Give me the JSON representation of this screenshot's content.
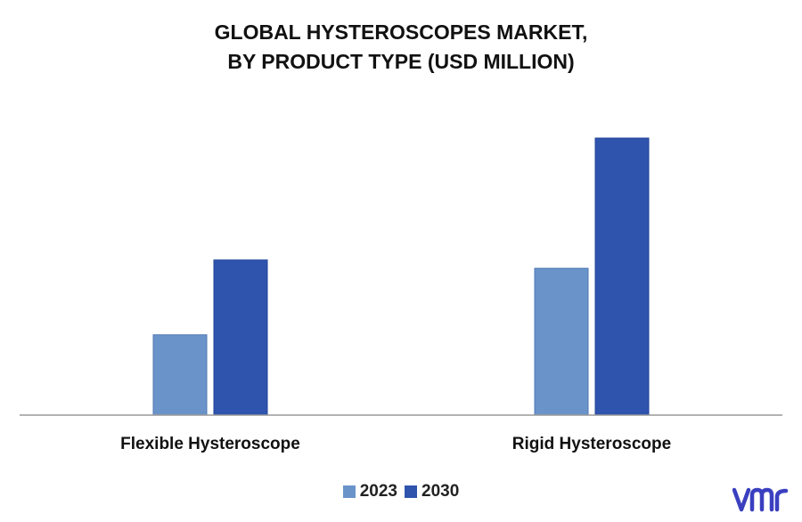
{
  "title_line1": "GLOBAL HYSTEROSCOPES MARKET,",
  "title_line2": "BY PRODUCT TYPE (USD MILLION)",
  "colors": {
    "series_2023": "#6a93c9",
    "series_2030": "#2e54ad",
    "axis": "#999999",
    "logo": "#3a3fc0"
  },
  "logo_text": "vmr",
  "chart_data": {
    "type": "bar",
    "title": "GLOBAL HYSTEROSCOPES MARKET, BY PRODUCT TYPE (USD MILLION)",
    "categories": [
      "Flexible Hysteroscope",
      "Rigid Hysteroscope"
    ],
    "series": [
      {
        "name": "2023",
        "values": [
          29,
          53
        ]
      },
      {
        "name": "2030",
        "values": [
          56,
          100
        ]
      }
    ],
    "ylim": [
      0,
      100
    ],
    "grid": false,
    "legend": "bottom"
  }
}
